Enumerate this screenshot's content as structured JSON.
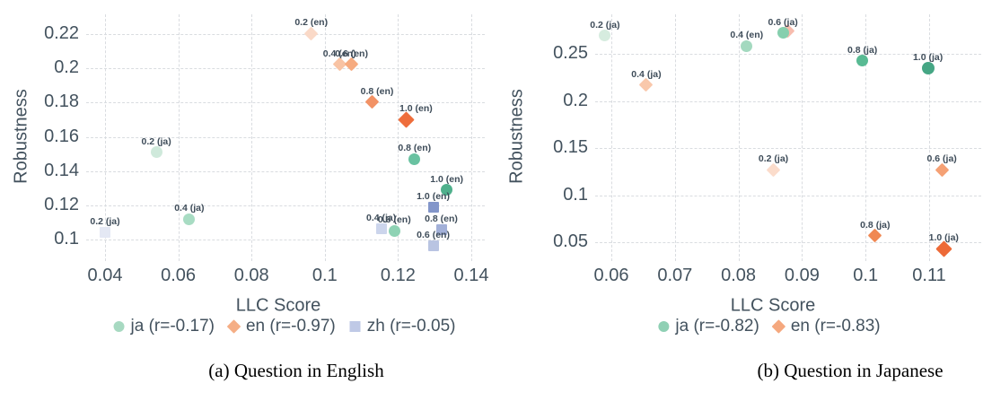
{
  "figure": {
    "background": "#ffffff",
    "text_color": "#43525e",
    "gridline_color": "#d9dce0"
  },
  "chart_data": [
    {
      "type": "scatter",
      "caption": "(a) Question in English",
      "xlabel": "LLC Score",
      "ylabel": "Robustness",
      "x_ticks": [
        "0.04",
        "0.06",
        "0.08",
        "0.1",
        "0.12",
        "0.14"
      ],
      "y_ticks": [
        "0.22",
        "0.2",
        "0.18",
        "0.16",
        "0.14",
        "0.12",
        "0.1"
      ],
      "grid": "dashed",
      "legend_position": "bottom",
      "legend": [
        {
          "label": "ja (r=-0.17)",
          "marker": "circle",
          "color": "#a7d9c1"
        },
        {
          "label": "en (r=-0.97)",
          "marker": "diamond",
          "color": "#f5ae85"
        },
        {
          "label": "zh (r=-0.05)",
          "marker": "square",
          "color": "#bfc9e6"
        }
      ],
      "series": [
        {
          "name": "ja",
          "marker": "circle",
          "points": [
            {
              "x": 0.054,
              "y": 0.151,
              "label": "0.2 (ja)",
              "color": "#cfe9db"
            },
            {
              "x": 0.063,
              "y": 0.112,
              "label": "0.4 (ja)",
              "color": "#a8dcc3"
            },
            {
              "x": 0.119,
              "y": 0.105,
              "label": "0.6 (en)",
              "color": "#8ed2b4"
            },
            {
              "x": 0.1245,
              "y": 0.147,
              "label": "0.8 (en)",
              "color": "#69c2a1"
            },
            {
              "x": 0.1333,
              "y": 0.129,
              "label": "1.0 (en)",
              "color": "#4fb08c"
            }
          ]
        },
        {
          "name": "en",
          "marker": "diamond",
          "points": [
            {
              "x": 0.0963,
              "y": 0.2205,
              "label": "0.2 (en)",
              "color": "#fad9c7"
            },
            {
              "x": 0.104,
              "y": 0.2023,
              "label": "0.4 (en)",
              "color": "#f8c3a4"
            },
            {
              "x": 0.1073,
              "y": 0.2023,
              "label": "0.6 (en)",
              "color": "#f6ab80"
            },
            {
              "x": 0.1128,
              "y": 0.1803,
              "label": "0.8 (en)",
              "color": "#f29265",
              "dx": 6
            },
            {
              "x": 0.1222,
              "y": 0.17,
              "label": "1.0 (en)",
              "color": "#ee6d3b",
              "dx": 11,
              "size": 13
            }
          ]
        },
        {
          "name": "zh",
          "marker": "square",
          "points": [
            {
              "x": 0.04,
              "y": 0.104,
              "label": "0.2 (ja)",
              "color": "#e4e8f4"
            },
            {
              "x": 0.1154,
              "y": 0.1065,
              "label": "0.4 (ja)",
              "color": "#ccd5ec"
            },
            {
              "x": 0.1296,
              "y": 0.0965,
              "label": "0.6 (en)",
              "color": "#b9c4e2"
            },
            {
              "x": 0.1318,
              "y": 0.106,
              "label": "0.8 (en)",
              "color": "#a2b0d8"
            },
            {
              "x": 0.1296,
              "y": 0.119,
              "label": "1.0 (en)",
              "color": "#8396ca"
            }
          ]
        }
      ]
    },
    {
      "type": "scatter",
      "caption": "(b) Question in Japanese",
      "xlabel": "LLC Score",
      "ylabel": "Robustness",
      "x_ticks": [
        "0.06",
        "0.07",
        "0.08",
        "0.09",
        "0.1",
        "0.11"
      ],
      "y_ticks": [
        "0.25",
        "0.2",
        "0.15",
        "0.1",
        "0.05"
      ],
      "grid": "dashed",
      "legend_position": "bottom",
      "legend": [
        {
          "label": "ja (r=-0.82)",
          "marker": "circle",
          "color": "#8fd0b4"
        },
        {
          "label": "en (r=-0.83)",
          "marker": "diamond",
          "color": "#f5a87e"
        }
      ],
      "series": [
        {
          "name": "en",
          "marker": "diamond",
          "points": [
            {
              "x": 0.0877,
              "y": 0.2745,
              "label": "",
              "color": "#f7bcae"
            },
            {
              "x": 0.0655,
              "y": 0.217,
              "label": "0.4 (ja)",
              "color": "#f9c8ab"
            },
            {
              "x": 0.0855,
              "y": 0.127,
              "label": "0.2 (ja)",
              "color": "#fbdccb"
            },
            {
              "x": 0.112,
              "y": 0.127,
              "label": "0.6 (ja)",
              "color": "#f5a175"
            },
            {
              "x": 0.1015,
              "y": 0.057,
              "label": "0.8 (ja)",
              "color": "#f08853"
            },
            {
              "x": 0.1123,
              "y": 0.043,
              "label": "1.0 (ja)",
              "color": "#ed6a37",
              "size": 13
            }
          ]
        },
        {
          "name": "ja",
          "marker": "circle",
          "points": [
            {
              "x": 0.059,
              "y": 0.2695,
              "label": "0.2 (ja)",
              "color": "#d6ecdf"
            },
            {
              "x": 0.0813,
              "y": 0.2585,
              "label": "0.4 (en)",
              "color": "#a3d9bf"
            },
            {
              "x": 0.087,
              "y": 0.272,
              "label": "0.6 (ja)",
              "color": "#86cfae"
            },
            {
              "x": 0.0995,
              "y": 0.2425,
              "label": "0.8 (ja)",
              "color": "#58ba93"
            },
            {
              "x": 0.1098,
              "y": 0.235,
              "label": "1.0 (ja)",
              "color": "#45a684",
              "size": 14
            }
          ]
        }
      ]
    }
  ]
}
